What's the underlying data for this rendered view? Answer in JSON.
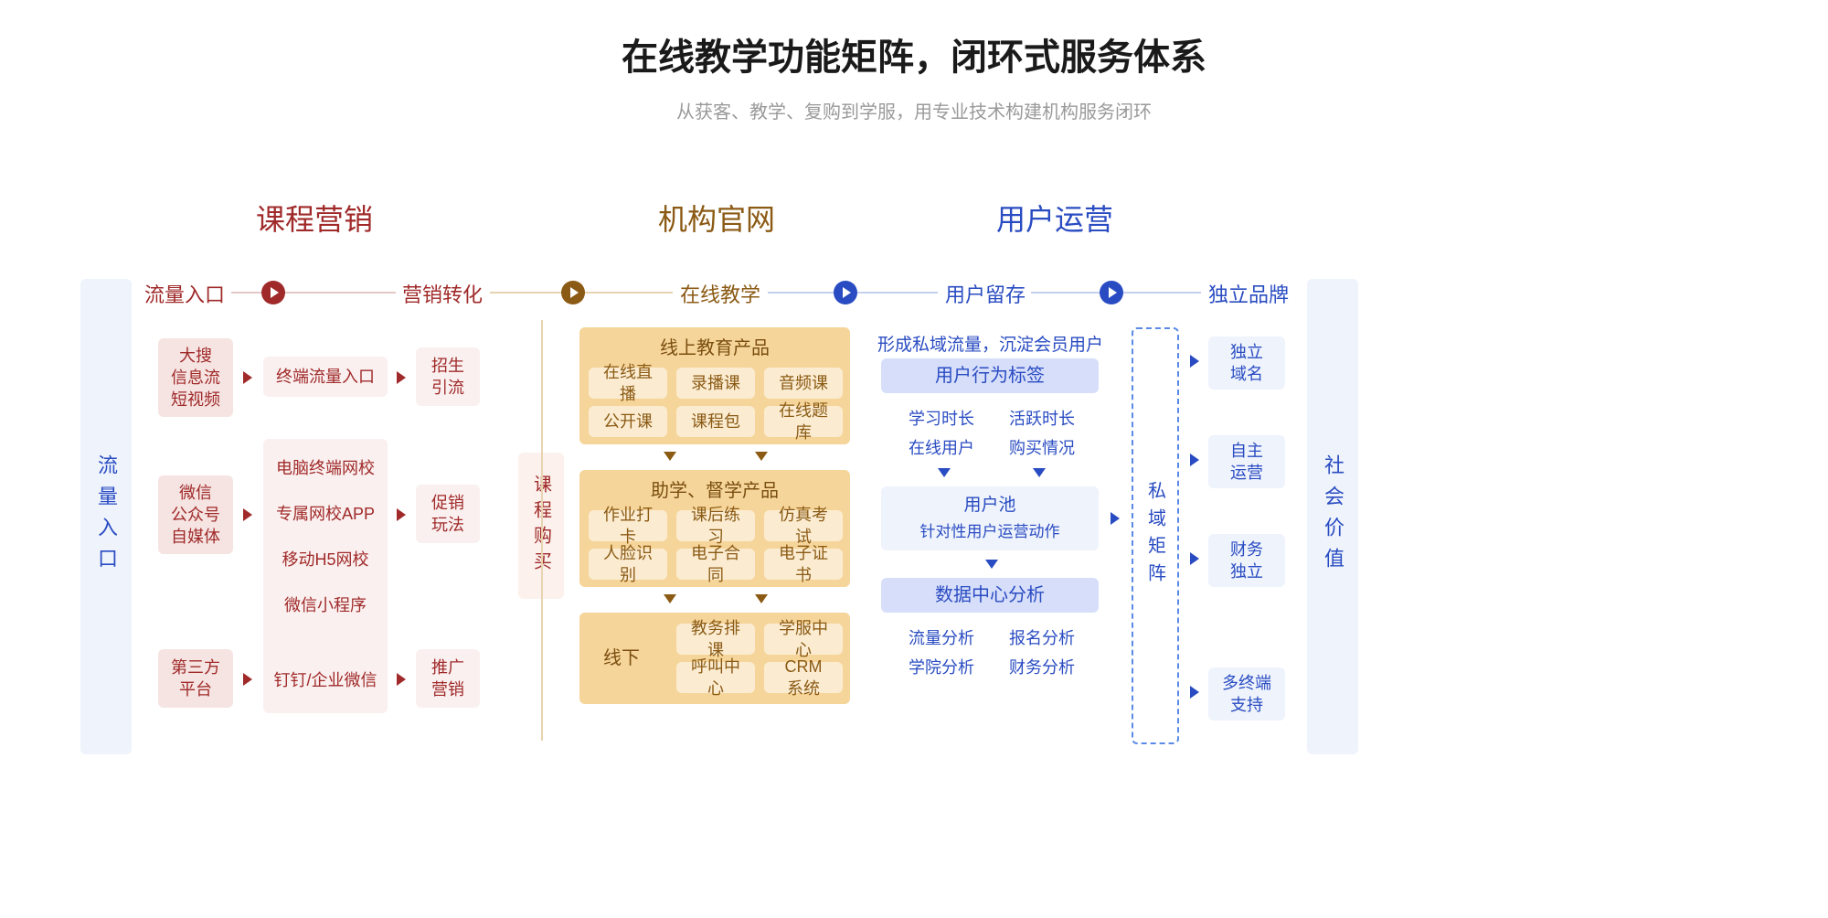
{
  "colors": {
    "red": "#a02a2a",
    "brown": "#8b5a14",
    "blue": "#2a4cc2",
    "bg_red_light": "#faf0ef",
    "bg_red_dark": "#f5e4e2",
    "bg_brown_head": "#f6d59a",
    "bg_brown_light": "#fbecd1",
    "bg_blue_head": "#d6defa",
    "bg_blue_light": "#eef3fc",
    "line_red": "#e6c7c7",
    "line_brown": "#e8d3b0",
    "line_blue": "#c5d0f0",
    "text_title": "#1a1a1a",
    "text_sub": "#9a9a9a",
    "background": "#ffffff"
  },
  "typography": {
    "title_size": 40,
    "subtitle_size": 20,
    "section_size": 32,
    "label_size": 22,
    "card_size": 18,
    "header_card_size": 20
  },
  "title": "在线教学功能矩阵，闭环式服务体系",
  "subtitle": "从获客、教学、复购到学服，用专业技术构建机构服务闭环",
  "sections": {
    "s1": "课程营销",
    "s2": "机构官网",
    "s3": "用户运营"
  },
  "subheaders": {
    "a": "流量入口",
    "b": "营销转化",
    "c": "在线教学",
    "d": "用户留存",
    "e": "独立品牌"
  },
  "side_cols": {
    "left": "流量入口",
    "mid": "课程购买",
    "priv": "私域矩阵",
    "right": "社会价值"
  },
  "red": {
    "src1": "大搜\n信息流\n短视频",
    "src2": "微信\n公众号\n自媒体",
    "src3": "第三方\n平台",
    "m1": "终端流量入口",
    "m2a": "电脑终端网校",
    "m2b": "专属网校APP",
    "m2c": "移动H5网校",
    "m2d": "微信小程序",
    "m2e": "钉钉/企业微信",
    "r1": "招生\n引流",
    "r2": "促销\n玩法",
    "r3": "推广\n营销"
  },
  "brown": {
    "h1": "线上教育产品",
    "h1_items": [
      "在线直播",
      "录播课",
      "音频课",
      "公开课",
      "课程包",
      "在线题库"
    ],
    "h2": "助学、督学产品",
    "h2_items": [
      "作业打卡",
      "课后练习",
      "仿真考试",
      "人脸识别",
      "电子合同",
      "电子证书"
    ],
    "h3": "线下",
    "h3_items": [
      "教务排课",
      "学服中心",
      "呼叫中心",
      "CRM系统"
    ]
  },
  "blue": {
    "caption": "形成私域流量，沉淀会员用户",
    "h1": "用户行为标签",
    "h1_items": [
      "学习时长",
      "活跃时长",
      "在线用户",
      "购买情况"
    ],
    "pool": "用户池",
    "pool_sub": "针对性用户运营动作",
    "h2": "数据中心分析",
    "h2_items": [
      "流量分析",
      "报名分析",
      "学院分析",
      "财务分析"
    ],
    "brand": [
      "独立\n域名",
      "自主\n运营",
      "财务\n独立",
      "多终端\n支持"
    ]
  }
}
